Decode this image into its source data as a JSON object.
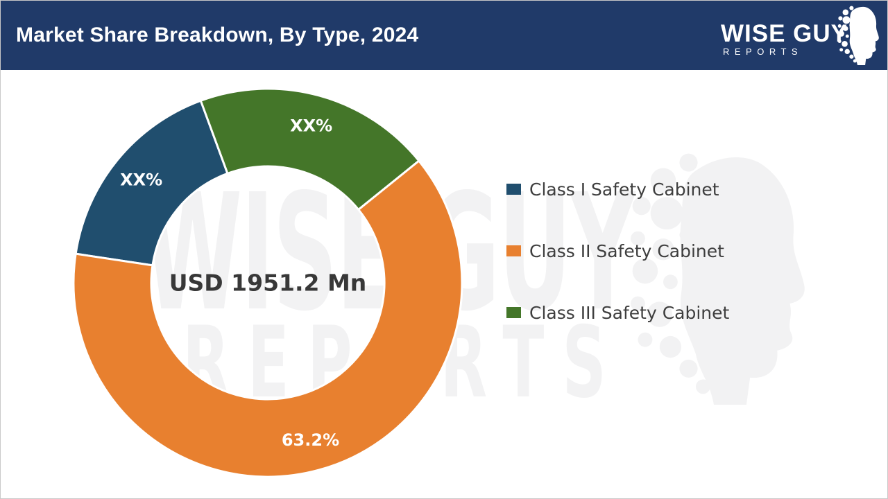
{
  "header": {
    "title": "Market Share Breakdown, By Type, 2024",
    "bg_color": "#203a69",
    "logo": {
      "line1": "WISE GUY",
      "line2": "REPORTS"
    }
  },
  "watermark": {
    "line1": "WISE GUY",
    "line2": "REPORTS"
  },
  "chart_data": {
    "type": "pie",
    "subtype": "donut",
    "title": "Market Share Breakdown, By Type, 2024",
    "center_label": "USD 1951.2 Mn",
    "legend_position": "right",
    "start_angle_deg": 278.6,
    "draw_order": [
      0,
      2,
      1
    ],
    "inner_radius_ratio": 0.6,
    "label_radius_ratio": 0.84,
    "divider_color": "#ffffff",
    "segments": [
      {
        "label": "Class I Safety Cabinet",
        "value_pct": 17.0,
        "display": "XX%",
        "color": "#204e6e"
      },
      {
        "label": "Class II Safety Cabinet",
        "value_pct": 63.2,
        "display": "63.2%",
        "color": "#e8802f"
      },
      {
        "label": "Class III Safety Cabinet",
        "value_pct": 19.8,
        "display": "XX%",
        "color": "#447629"
      }
    ]
  }
}
